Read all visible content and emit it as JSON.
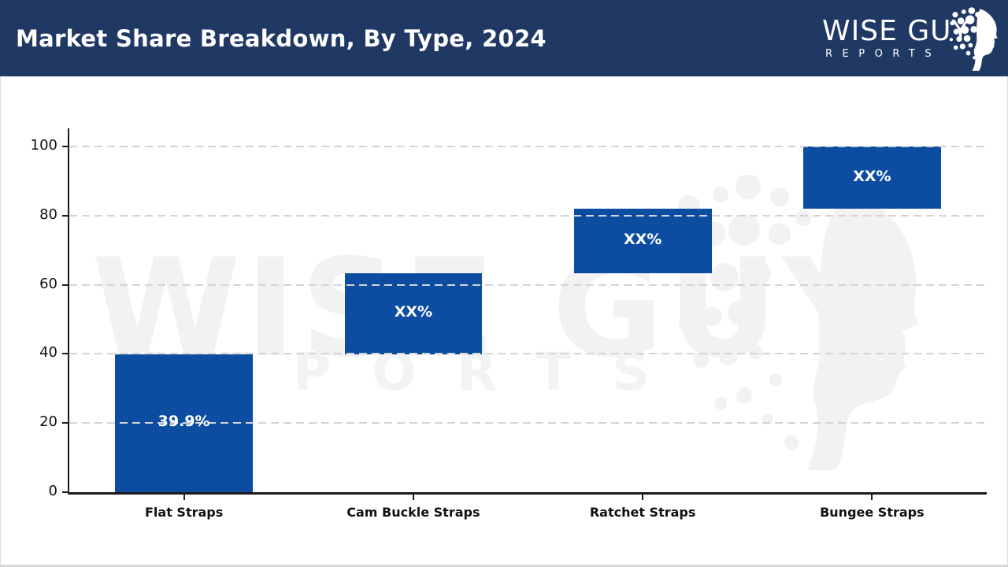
{
  "page": {
    "background": "#ffffff",
    "border_color": "#d8d8d8"
  },
  "header": {
    "title": "Market Share Breakdown, By Type, 2024",
    "background_color": "#1f3864",
    "title_color": "#ffffff",
    "logo": {
      "name": "WISE GUY",
      "tagline": "REPORTS"
    }
  },
  "watermark": {
    "line1": "WISE GUY",
    "line2": "REPORTS"
  },
  "chart_data": {
    "type": "bar",
    "variant": "waterfall-floating-bars",
    "title": "Market Share Breakdown, By Type, 2024",
    "categories": [
      "Flat Straps",
      "Cam Buckle Straps",
      "Ratchet Straps",
      "Bungee Straps"
    ],
    "segments": [
      {
        "category": "Flat Straps",
        "start": 0,
        "end": 39.9,
        "label": "39.9%"
      },
      {
        "category": "Cam Buckle Straps",
        "start": 39.9,
        "end": 63.3,
        "label": "XX%"
      },
      {
        "category": "Ratchet Straps",
        "start": 63.3,
        "end": 82.0,
        "label": "XX%"
      },
      {
        "category": "Bungee Straps",
        "start": 82.0,
        "end": 100.0,
        "label": "XX%"
      }
    ],
    "xlabel": "",
    "ylabel": "",
    "ylim": [
      0,
      100
    ],
    "yticks": [
      0,
      20,
      40,
      60,
      80,
      100
    ],
    "grid": "horizontal-dashed",
    "legend": "none",
    "bar_color": "#0d4da1",
    "bar_label_color": "#ffffff",
    "axis_color": "#1a1a1a",
    "gridline_color": "#d4d4d4",
    "tick_label_color": "#111111"
  }
}
